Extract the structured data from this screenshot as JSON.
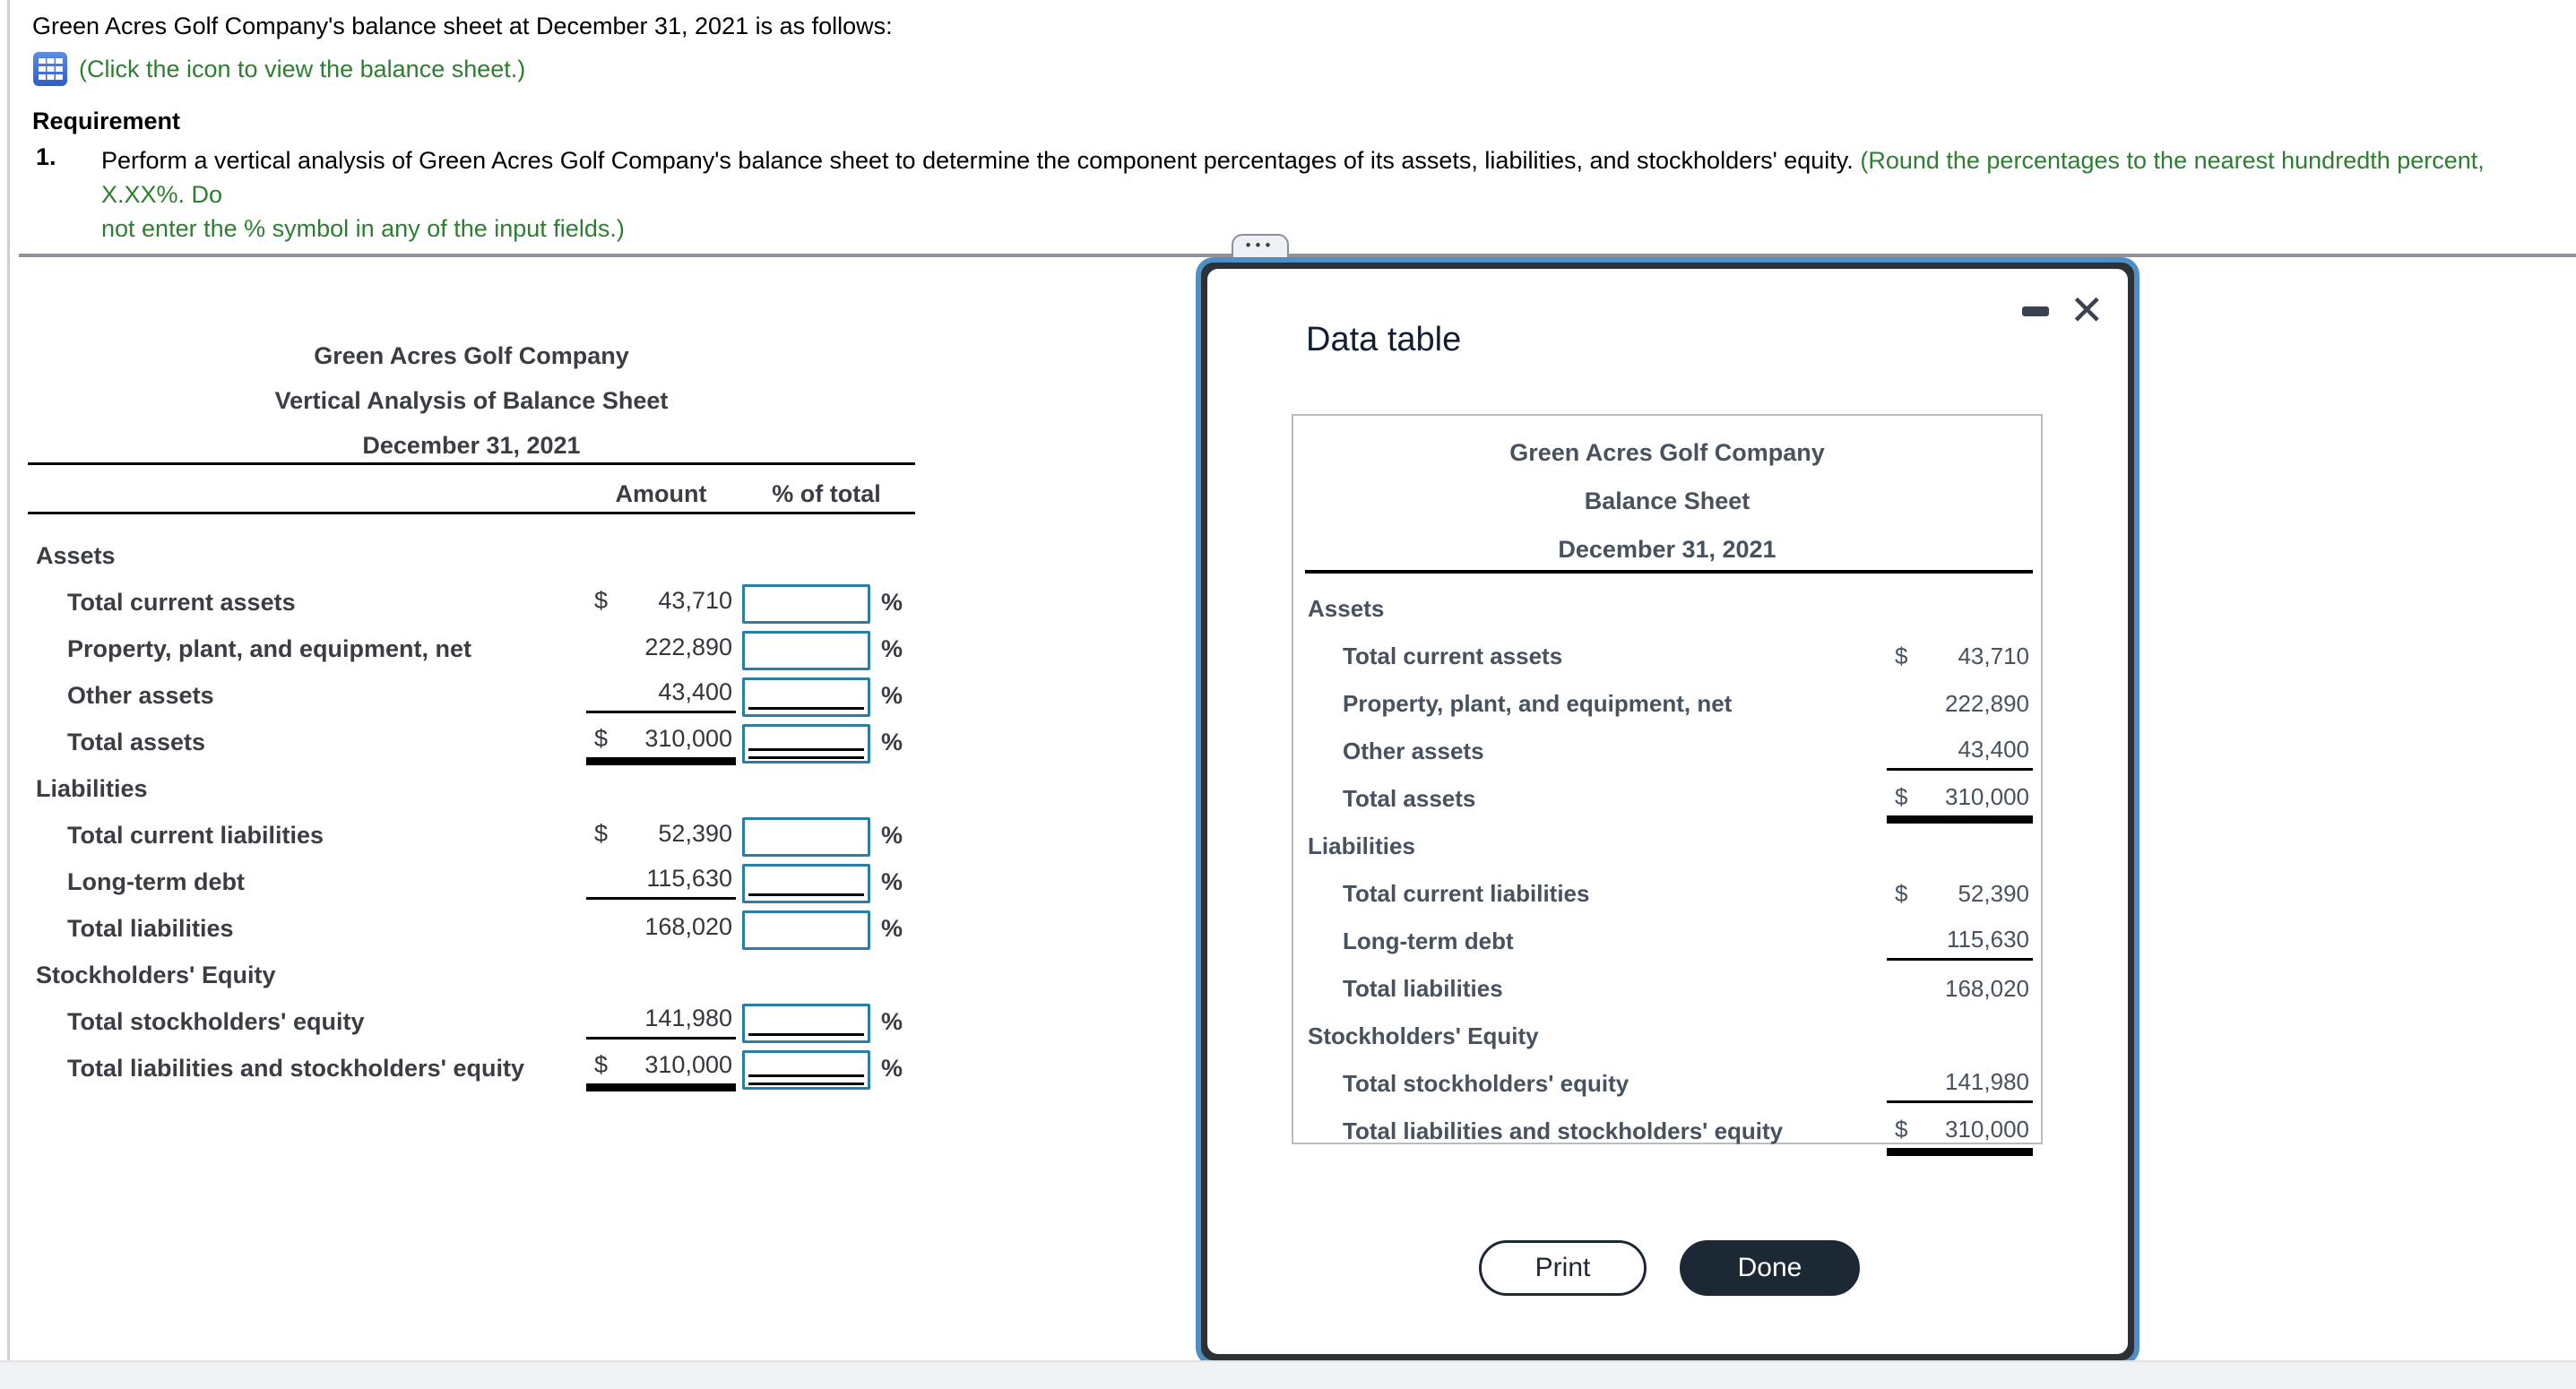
{
  "page": {
    "intro": "Green Acres Golf Company's balance sheet at December 31, 2021 is as follows:",
    "icon_caption": "(Click the icon to view the balance sheet.)",
    "requirement_heading": "Requirement",
    "item_number": "1.",
    "requirement_black": "Perform a vertical analysis of Green Acres Golf Company's balance sheet to determine the component percentages of its assets, liabilities, and stockholders' equity.",
    "requirement_green_line1": "(Round the percentages to the nearest hundredth percent, X.XX%. Do",
    "requirement_green_line2": "not enter the % symbol in any of the input fields.)",
    "colors": {
      "green_text": "#2f7d31",
      "input_border": "#2a7da3",
      "modal_border_blue": "#4e90c5",
      "modal_border_dark": "#2c3136",
      "button_dark": "#1d2835"
    }
  },
  "worksheet": {
    "title_company": "Green Acres Golf Company",
    "title_statement": "Vertical Analysis of Balance Sheet",
    "title_date": "December 31, 2021",
    "col_amount": "Amount",
    "col_percent": "% of total",
    "percent_sign": "%",
    "rows": [
      {
        "type": "section",
        "label": "Assets"
      },
      {
        "type": "item",
        "label": "Total current assets",
        "dollar": "$",
        "amount": "43,710",
        "rule": "none",
        "input": ""
      },
      {
        "type": "item",
        "label": "Property, plant, and equipment, net",
        "dollar": "",
        "amount": "222,890",
        "rule": "none",
        "input": ""
      },
      {
        "type": "item",
        "label": "Other assets",
        "dollar": "",
        "amount": "43,400",
        "rule": "single",
        "input": ""
      },
      {
        "type": "item",
        "label": "Total assets",
        "dollar": "$",
        "amount": "310,000",
        "rule": "double",
        "input": ""
      },
      {
        "type": "section",
        "label": "Liabilities"
      },
      {
        "type": "item",
        "label": "Total current liabilities",
        "dollar": "$",
        "amount": "52,390",
        "rule": "none",
        "input": ""
      },
      {
        "type": "item",
        "label": "Long-term debt",
        "dollar": "",
        "amount": "115,630",
        "rule": "single",
        "input": ""
      },
      {
        "type": "item",
        "label": "Total liabilities",
        "dollar": "",
        "amount": "168,020",
        "rule": "none",
        "input": ""
      },
      {
        "type": "section",
        "label": "Stockholders' Equity"
      },
      {
        "type": "item",
        "label": "Total stockholders' equity",
        "dollar": "",
        "amount": "141,980",
        "rule": "single",
        "input": ""
      },
      {
        "type": "item",
        "label": "Total liabilities and stockholders' equity",
        "dollar": "$",
        "amount": "310,000",
        "rule": "double",
        "input": ""
      }
    ]
  },
  "modal": {
    "title": "Data table",
    "drag_handle_glyph": "•••",
    "close_glyph": "✕",
    "table": {
      "title_company": "Green Acres Golf Company",
      "title_statement": "Balance Sheet",
      "title_date": "December 31, 2021",
      "rows": [
        {
          "type": "section",
          "label": "Assets"
        },
        {
          "type": "item",
          "label": "Total current assets",
          "dollar": "$",
          "amount": "43,710",
          "rule": "none"
        },
        {
          "type": "item",
          "label": "Property, plant, and equipment, net",
          "dollar": "",
          "amount": "222,890",
          "rule": "none"
        },
        {
          "type": "item",
          "label": "Other assets",
          "dollar": "",
          "amount": "43,400",
          "rule": "single"
        },
        {
          "type": "item",
          "label": "Total assets",
          "dollar": "$",
          "amount": "310,000",
          "rule": "double"
        },
        {
          "type": "section",
          "label": "Liabilities"
        },
        {
          "type": "item",
          "label": "Total current liabilities",
          "dollar": "$",
          "amount": "52,390",
          "rule": "none"
        },
        {
          "type": "item",
          "label": "Long-term debt",
          "dollar": "",
          "amount": "115,630",
          "rule": "single"
        },
        {
          "type": "item",
          "label": "Total liabilities",
          "dollar": "",
          "amount": "168,020",
          "rule": "none"
        },
        {
          "type": "section",
          "label": "Stockholders' Equity"
        },
        {
          "type": "item",
          "label": "Total stockholders' equity",
          "dollar": "",
          "amount": "141,980",
          "rule": "single"
        },
        {
          "type": "item",
          "label": "Total liabilities and stockholders' equity",
          "dollar": "$",
          "amount": "310,000",
          "rule": "double"
        }
      ]
    },
    "buttons": {
      "print": "Print",
      "done": "Done"
    }
  }
}
